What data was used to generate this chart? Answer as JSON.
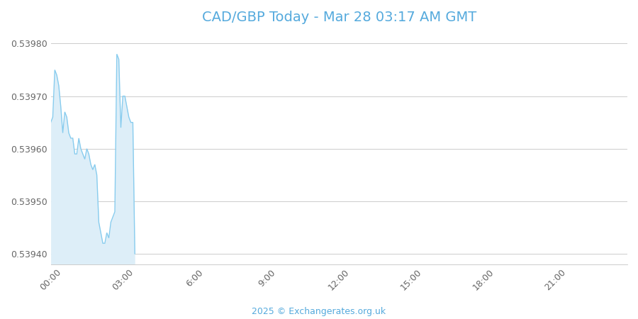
{
  "title": "CAD/GBP Today - Mar 28 03:17 AM GMT",
  "title_color": "#55aadd",
  "footer": "2025 © Exchangerates.org.uk",
  "footer_color": "#55aadd",
  "background_color": "#ffffff",
  "line_color": "#88ccee",
  "fill_color": "#ddeef8",
  "grid_color": "#cccccc",
  "ylim": [
    0.53938,
    0.53982
  ],
  "yticks": [
    0.5394,
    0.5395,
    0.5396,
    0.5397,
    0.5398
  ],
  "xtick_positions": [
    0,
    3,
    6,
    9,
    12,
    15,
    18,
    21
  ],
  "xtick_labels": [
    "00:00",
    "03:00",
    "6:00",
    "9:00",
    "12:00",
    "15:00",
    "18:00",
    "21:00"
  ],
  "xlim": [
    0,
    24
  ],
  "time_points": [
    0.0,
    0.083,
    0.167,
    0.25,
    0.333,
    0.417,
    0.5,
    0.583,
    0.667,
    0.75,
    0.833,
    0.917,
    1.0,
    1.083,
    1.167,
    1.25,
    1.333,
    1.417,
    1.5,
    1.583,
    1.667,
    1.75,
    1.833,
    1.917,
    2.0,
    2.083,
    2.167,
    2.25,
    2.333,
    2.417,
    2.5,
    2.583,
    2.667,
    2.75,
    2.833,
    2.917,
    3.0,
    3.083,
    3.167,
    3.25,
    3.333,
    3.417,
    3.5
  ],
  "values": [
    0.53965,
    0.53966,
    0.53975,
    0.53974,
    0.53972,
    0.53968,
    0.53963,
    0.53967,
    0.53966,
    0.53963,
    0.53962,
    0.53962,
    0.53959,
    0.53959,
    0.53962,
    0.5396,
    0.53959,
    0.53958,
    0.5396,
    0.53959,
    0.53957,
    0.53956,
    0.53957,
    0.53955,
    0.53946,
    0.53944,
    0.53942,
    0.53942,
    0.53944,
    0.53943,
    0.53946,
    0.53947,
    0.53948,
    0.53978,
    0.53977,
    0.53964,
    0.5397,
    0.5397,
    0.53968,
    0.53966,
    0.53965,
    0.53965,
    0.5394
  ],
  "fill_baseline": 0.53938
}
